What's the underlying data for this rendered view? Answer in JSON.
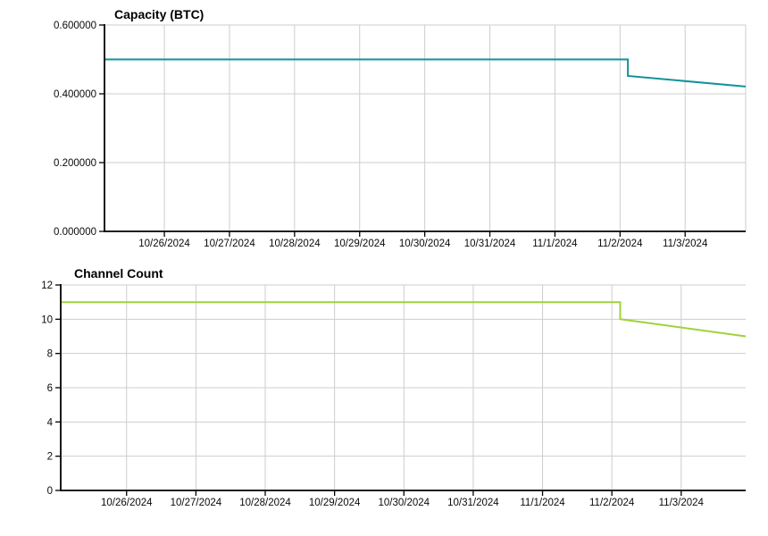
{
  "chart_data": [
    {
      "type": "line",
      "title": "Capacity (BTC)",
      "xlabel": "",
      "ylabel": "",
      "grid": true,
      "legend": "none",
      "ylim": [
        0,
        0.6
      ],
      "x_domain_days": [
        -0.92,
        8.93
      ],
      "x_tick_days": [
        0,
        1,
        2,
        3,
        4,
        5,
        6,
        7,
        8
      ],
      "x_tick_labels": [
        "10/26/2024",
        "10/27/2024",
        "10/28/2024",
        "10/29/2024",
        "10/30/2024",
        "10/31/2024",
        "11/1/2024",
        "11/2/2024",
        "11/3/2024"
      ],
      "y_ticks": [
        {
          "value": 0.0,
          "label": "0.000000"
        },
        {
          "value": 0.2,
          "label": "0.200000"
        },
        {
          "value": 0.4,
          "label": "0.400000"
        },
        {
          "value": 0.6,
          "label": "0.600000"
        }
      ],
      "series": [
        {
          "name": "capacity-btc",
          "color": "#12929B",
          "points": [
            [
              -0.92,
              0.5
            ],
            [
              7.12,
              0.5
            ],
            [
              7.12,
              0.452
            ],
            [
              8.93,
              0.421
            ]
          ]
        }
      ]
    },
    {
      "type": "line",
      "title": "Channel Count",
      "xlabel": "",
      "ylabel": "",
      "grid": true,
      "legend": "none",
      "ylim": [
        0,
        12
      ],
      "x_domain_days": [
        -0.95,
        8.93
      ],
      "x_tick_days": [
        0,
        1,
        2,
        3,
        4,
        5,
        6,
        7,
        8
      ],
      "x_tick_labels": [
        "10/26/2024",
        "10/27/2024",
        "10/28/2024",
        "10/29/2024",
        "10/30/2024",
        "10/31/2024",
        "11/1/2024",
        "11/2/2024",
        "11/3/2024"
      ],
      "y_ticks": [
        {
          "value": 0,
          "label": "0"
        },
        {
          "value": 2,
          "label": "2"
        },
        {
          "value": 4,
          "label": "4"
        },
        {
          "value": 6,
          "label": "6"
        },
        {
          "value": 8,
          "label": "8"
        },
        {
          "value": 10,
          "label": "10"
        },
        {
          "value": 12,
          "label": "12"
        }
      ],
      "series": [
        {
          "name": "channel-count",
          "color": "#A0D239",
          "points": [
            [
              -0.95,
              11
            ],
            [
              7.12,
              11
            ],
            [
              7.12,
              10
            ],
            [
              8.93,
              9
            ]
          ]
        }
      ]
    }
  ],
  "colors": {
    "gridline": "#CDCDCD",
    "axis": "#000000",
    "text": "#000000"
  }
}
